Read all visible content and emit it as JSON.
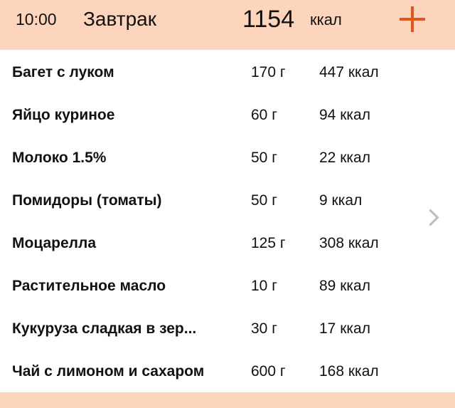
{
  "header": {
    "time": "10:00",
    "meal": "Завтрак",
    "total": "1154",
    "unit": "ккал",
    "add_icon": "plus-icon",
    "accent": "#e0561c"
  },
  "items": [
    {
      "name": "Багет с луком",
      "weight": "170 г",
      "kcal": "447 ккал"
    },
    {
      "name": "Яйцо куриное",
      "weight": "60 г",
      "kcal": "94 ккал"
    },
    {
      "name": "Молоко 1.5%",
      "weight": "50 г",
      "kcal": "22 ккал"
    },
    {
      "name": "Помидоры (томаты)",
      "weight": "50 г",
      "kcal": "9 ккал"
    },
    {
      "name": "Моцарелла",
      "weight": "125 г",
      "kcal": "308 ккал"
    },
    {
      "name": "Растительное масло",
      "weight": "10 г",
      "kcal": "89 ккал"
    },
    {
      "name": "Кукуруза сладкая в зер...",
      "weight": "30 г",
      "kcal": "17 ккал"
    },
    {
      "name": "Чай с лимоном и сахаром",
      "weight": "600 г",
      "kcal": "168 ккал"
    }
  ],
  "detail_icon": "chevron-right-icon"
}
